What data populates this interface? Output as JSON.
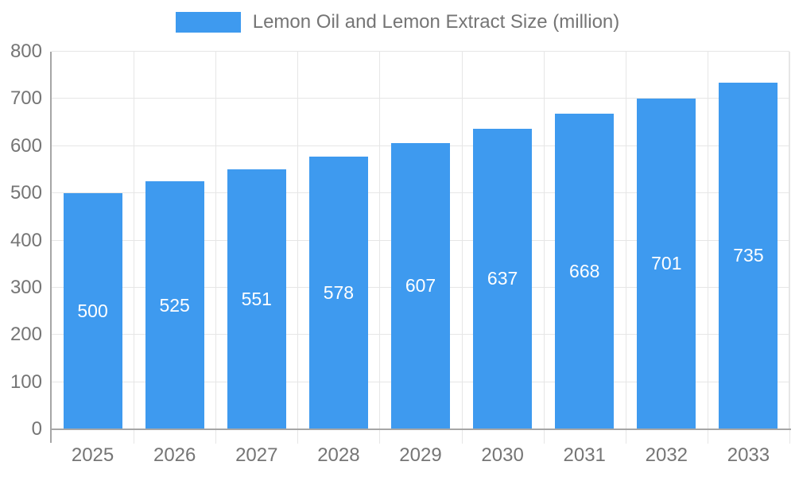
{
  "chart_data": {
    "type": "bar",
    "title": "Lemon Oil and Lemon Extract Size (million)",
    "categories": [
      "2025",
      "2026",
      "2027",
      "2028",
      "2029",
      "2030",
      "2031",
      "2032",
      "2033"
    ],
    "values": [
      500,
      525,
      551,
      578,
      607,
      637,
      668,
      701,
      735
    ],
    "xlabel": "",
    "ylabel": "",
    "ylim": [
      0,
      800
    ],
    "yticks": [
      0,
      100,
      200,
      300,
      400,
      500,
      600,
      700,
      800
    ],
    "grid": "both",
    "legend_position": "top",
    "value_labels": "inside-center"
  },
  "legend": {
    "swatch_color": "#3E9AEF"
  },
  "colors": {
    "bar": "#3E9AEF",
    "grid": "#E6E6E6",
    "axis": "#A6A6A6",
    "tick_text": "#757575",
    "value_label": "#FFFFFF",
    "background": "#FFFFFF"
  }
}
